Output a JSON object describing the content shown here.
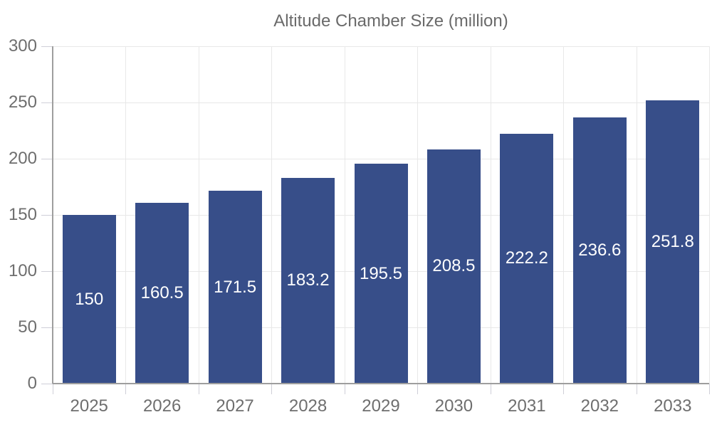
{
  "legend": {
    "label": "Altitude Chamber Size (million)",
    "position": "top-center"
  },
  "colors": {
    "bar": "#374e89",
    "value_label": "#ffffff",
    "axis_line": "#9e9e9e",
    "gridline": "#e8e8e8",
    "tick": "#cfcfd8",
    "tick_label": "#6e6e6e",
    "legend_label": "#6a6a6a",
    "background": "#ffffff"
  },
  "chart_data": {
    "type": "bar",
    "title": "Altitude Chamber Size (million)",
    "categories": [
      "2025",
      "2026",
      "2027",
      "2028",
      "2029",
      "2030",
      "2031",
      "2032",
      "2033"
    ],
    "values": [
      150,
      160.5,
      171.5,
      183.2,
      195.5,
      208.5,
      222.2,
      236.6,
      251.8
    ],
    "value_labels": [
      "150",
      "160.5",
      "171.5",
      "183.2",
      "195.5",
      "208.5",
      "222.2",
      "236.6",
      "251.8"
    ],
    "series_name": "Altitude Chamber Size (million)",
    "xlabel": "",
    "ylabel": "",
    "ylim": [
      0,
      300
    ],
    "yticks": [
      0,
      50,
      100,
      150,
      200,
      250,
      300
    ],
    "grid": true,
    "grid_vertical": true,
    "legend_position": "top-center",
    "value_label_position": "inside-center",
    "bar_color": "#374e89"
  }
}
